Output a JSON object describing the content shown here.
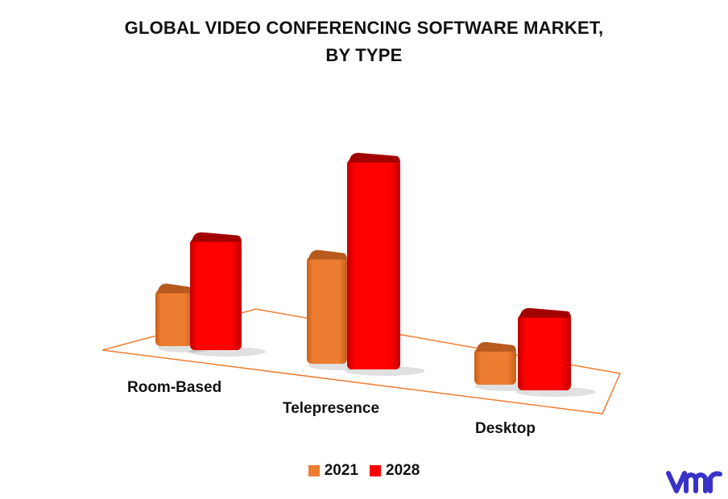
{
  "chart_data": {
    "type": "bar",
    "title_lines": [
      "GLOBAL VIDEO CONFERENCING SOFTWARE MARKET,",
      "BY TYPE"
    ],
    "categories": [
      "Room-Based",
      "Telepresence",
      "Desktop"
    ],
    "series": [
      {
        "name": "2021",
        "values": [
          75,
          140,
          50
        ]
      },
      {
        "name": "2028",
        "values": [
          145,
          270,
          100
        ]
      }
    ],
    "colors": {
      "2021": "#ED7D31",
      "2028": "#FF0000",
      "floor": "#ED7D31"
    },
    "ylim": [
      0,
      280
    ],
    "legend_position": "bottom",
    "grid": false
  },
  "logo": {
    "name": "vmr-logo",
    "color": "#3A33C8"
  }
}
